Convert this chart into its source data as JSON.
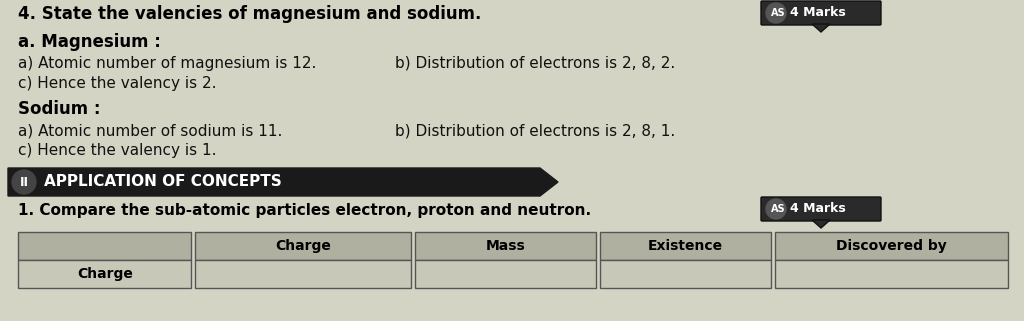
{
  "page_bg": "#d4d4c4",
  "title_text": "4. State the valencies of magnesium and sodium.",
  "magnesium_label": "a. Magnesium :",
  "mg_a": "a) Atomic number of magnesium is 12.",
  "mg_b": "b) Distribution of electrons is 2, 8, 2.",
  "mg_c": "c) Hence the valency is 2.",
  "sodium_label": "Sodium :",
  "na_a": "a) Atomic number of sodium is 11.",
  "na_b": "b) Distribution of electrons is 2, 8, 1.",
  "na_c": "c) Hence the valency is 1.",
  "q1_text": "1. Compare the sub-atomic particles electron, proton and neutron.",
  "table_headers": [
    "",
    "Charge",
    "Mass",
    "Existence",
    "Discovered by"
  ],
  "text_color": "#111111",
  "bold_color": "#000000",
  "banner_color": "#1a1a1a",
  "badge_color": "#2a2a2a",
  "badge_circle_color": "#555555",
  "table_header_bg": "#b0b0a0",
  "table_row_bg": "#c8c8b8"
}
